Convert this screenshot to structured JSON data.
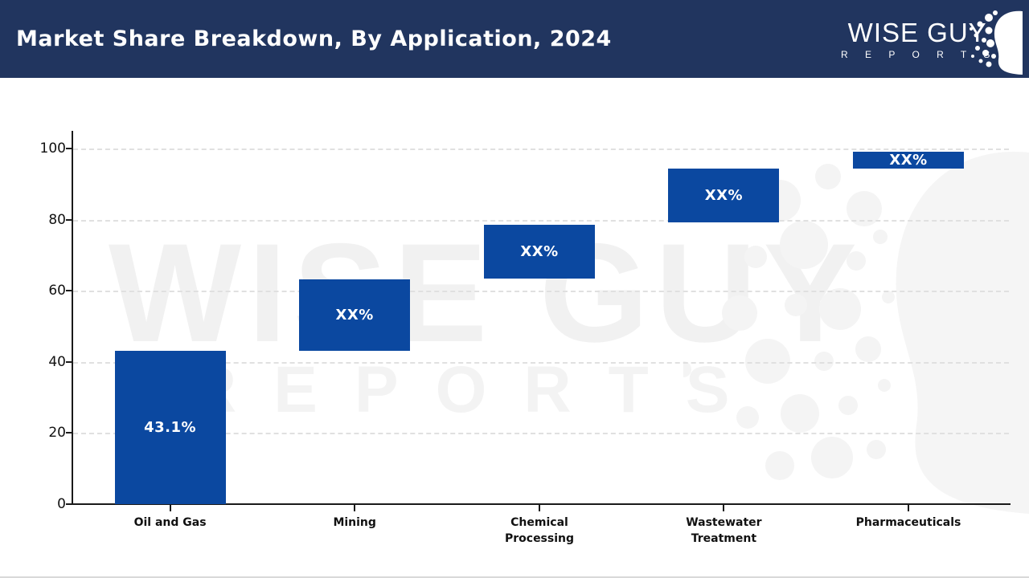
{
  "header": {
    "title": "Market Share Breakdown, By Application, 2024",
    "logo": {
      "main": "WISE GUY",
      "sub": "R E P O R T S"
    }
  },
  "watermark": {
    "line1": "WISE GUY",
    "line2": "REPORTS"
  },
  "colors": {
    "header_bg": "#21355f",
    "bar": "#0b48a0",
    "bar_label": "#ffffff",
    "gridline": "#e0e0e0",
    "axis": "#1a1a1a",
    "watermark": "#f1f1f1"
  },
  "chart_data": {
    "type": "bar",
    "subtype": "waterfall",
    "title": "Market Share Breakdown, By Application, 2024",
    "xlabel": "",
    "ylabel": "",
    "ylim": [
      0,
      105
    ],
    "yticks": [
      0,
      20,
      40,
      60,
      80,
      100
    ],
    "grid": "horizontal-dashed",
    "legend": "none",
    "categories": [
      "Oil and Gas",
      "Mining",
      "Chemical Processing",
      "Wastewater Treatment",
      "Pharmaceuticals"
    ],
    "category_label_lines": [
      [
        "Oil and Gas"
      ],
      [
        "Mining"
      ],
      [
        "Chemical",
        "Processing"
      ],
      [
        "Wastewater",
        "Treatment"
      ],
      [
        "Pharmaceuticals"
      ]
    ],
    "segments": [
      {
        "category": "Oil and Gas",
        "start": 0,
        "end": 43.1,
        "label": "43.1%"
      },
      {
        "category": "Mining",
        "start": 43.2,
        "end": 63.1,
        "label": "XX%"
      },
      {
        "category": "Chemical Processing",
        "start": 63.4,
        "end": 78.6,
        "label": "XX%"
      },
      {
        "category": "Wastewater Treatment",
        "start": 79.2,
        "end": 94.4,
        "label": "XX%"
      },
      {
        "category": "Pharmaceuticals",
        "start": 94.4,
        "end": 99.2,
        "label": "XX%"
      }
    ]
  }
}
